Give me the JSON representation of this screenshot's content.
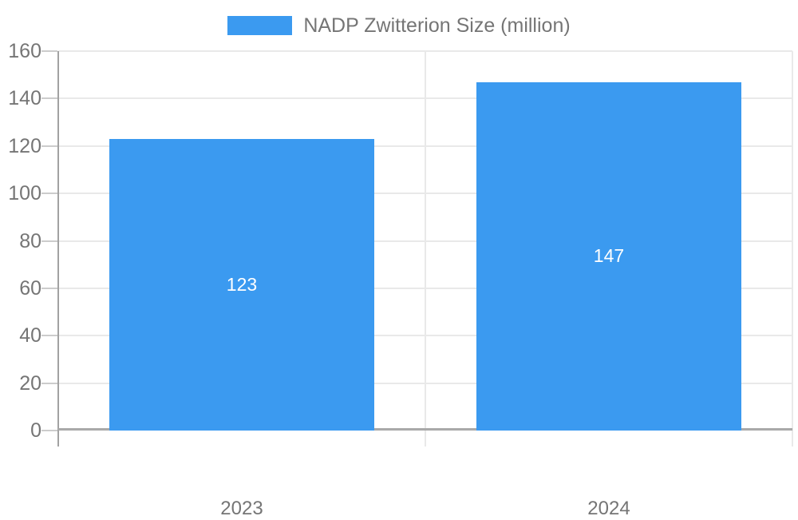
{
  "chart_data": {
    "type": "bar",
    "title": "",
    "legend": {
      "position": "top",
      "entries": [
        {
          "label": "NADP Zwitterion Size (million)",
          "color": "#3B9AF0"
        }
      ]
    },
    "categories": [
      "2023",
      "2024"
    ],
    "series": [
      {
        "name": "NADP Zwitterion Size (million)",
        "values": [
          123,
          147
        ]
      }
    ],
    "data_labels": [
      "123",
      "147"
    ],
    "xlabel": "",
    "ylabel": "",
    "ylim": [
      0,
      160
    ],
    "ytick_step": 20,
    "ytick_labels": [
      "0",
      "20",
      "40",
      "60",
      "80",
      "100",
      "120",
      "140",
      "160"
    ],
    "grid": true,
    "colors": {
      "bar": "#3B9AF0",
      "bar_label_text": "#ffffff",
      "axis_text": "#757575",
      "axis_line": "#a2a2a2",
      "gridline": "#e9e9e9",
      "tick": "#cccccc",
      "background": "#ffffff"
    }
  }
}
